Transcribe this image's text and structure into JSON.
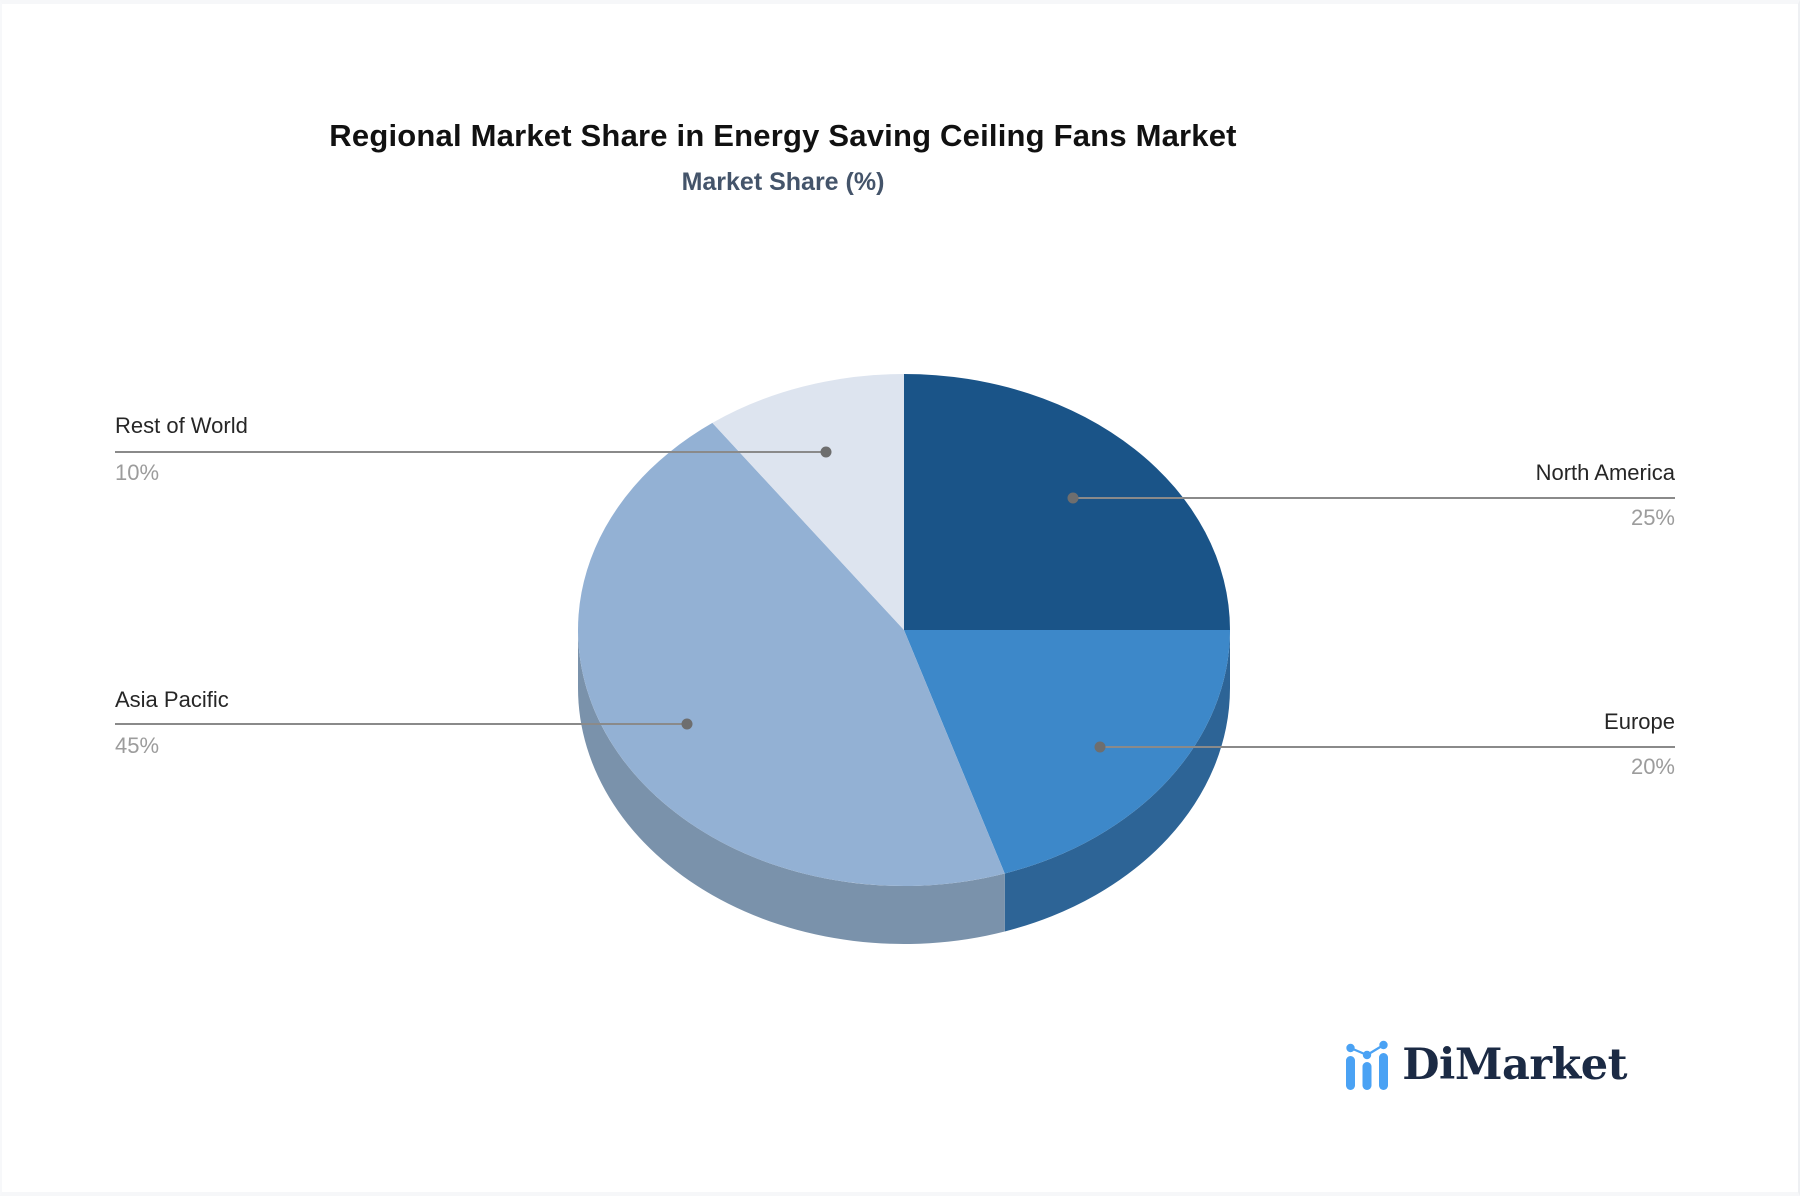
{
  "header": {
    "title": "Regional Market Share in Energy Saving Ceiling Fans Market",
    "subtitle": "Market Share (%)"
  },
  "chart_data": {
    "type": "pie",
    "title": "Regional Market Share in Energy Saving Ceiling Fans Market",
    "subtitle": "Market Share (%)",
    "unit": "%",
    "slices": [
      {
        "label": "North America",
        "value": 25,
        "pct": "25%",
        "color": "#1a5488"
      },
      {
        "label": "Europe",
        "value": 20,
        "pct": "20%",
        "color": "#3d88c9",
        "side_color": "#2d6496"
      },
      {
        "label": "Asia Pacific",
        "value": 45,
        "pct": "45%",
        "color": "#93b1d4",
        "side_color": "#7a92ab"
      },
      {
        "label": "Rest of World",
        "value": 10,
        "pct": "10%",
        "color": "#dde4ef"
      }
    ],
    "style": {
      "effect": "3d",
      "start_angle_deg": 0,
      "direction": "clockwise",
      "leader_line_color": "#8a8a8a",
      "leader_dot_color": "#6e6e6e",
      "label_color": "#262626",
      "pct_color": "#9c9c9c"
    },
    "legend_position": "none"
  },
  "branding": {
    "logo_text": "DiMarket",
    "logo_icon": "bar-line-chart-icon",
    "logo_text_color": "#1b2a44",
    "logo_icon_color": "#4aa2f4"
  }
}
